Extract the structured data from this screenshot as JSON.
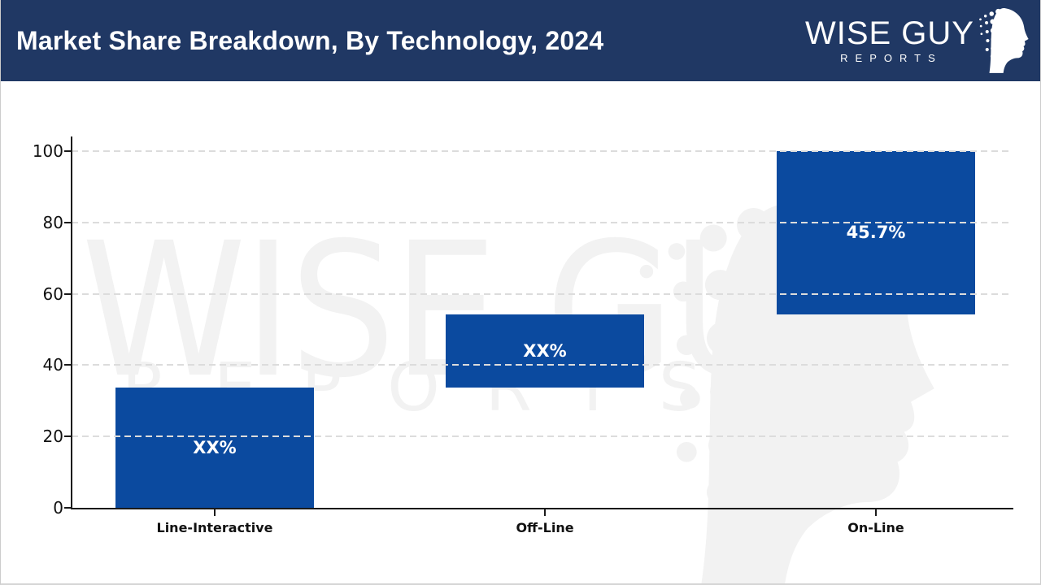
{
  "header": {
    "bg_color": "#203864",
    "title": "Market Share Breakdown, By Technology, 2024",
    "logo": {
      "wordmark": "WISE GUY",
      "subtext": "REPORTS",
      "face_icon": "dotted-face-profile"
    }
  },
  "watermark": {
    "wordmark": "WISE GUY",
    "subtext": "REPORTS",
    "color": "#f2f2f2"
  },
  "chart_data": {
    "type": "bar",
    "subtype": "floating-waterfall",
    "title": "Market Share Breakdown, By Technology, 2024",
    "xlabel": "",
    "ylabel": "",
    "categories": [
      "Line-Interactive",
      "Off-Line",
      "On-Line"
    ],
    "segments": [
      {
        "category": "Line-Interactive",
        "start": 0,
        "end": 33.8,
        "label": "XX%"
      },
      {
        "category": "Off-Line",
        "start": 33.8,
        "end": 54.3,
        "label": "XX%"
      },
      {
        "category": "On-Line",
        "start": 54.3,
        "end": 100,
        "label": "45.7%"
      }
    ],
    "y_ticks": [
      0,
      20,
      40,
      60,
      80,
      100
    ],
    "ylim": [
      0,
      100
    ],
    "grid": "dashed-horizontal-over-bars",
    "legend": "none",
    "bar_color": "#0b4a9f",
    "bar_label_color": "#ffffff",
    "axis_color": "#1a1a1a",
    "grid_color": "#dcdcdc",
    "tick_label_color": "#111111"
  }
}
